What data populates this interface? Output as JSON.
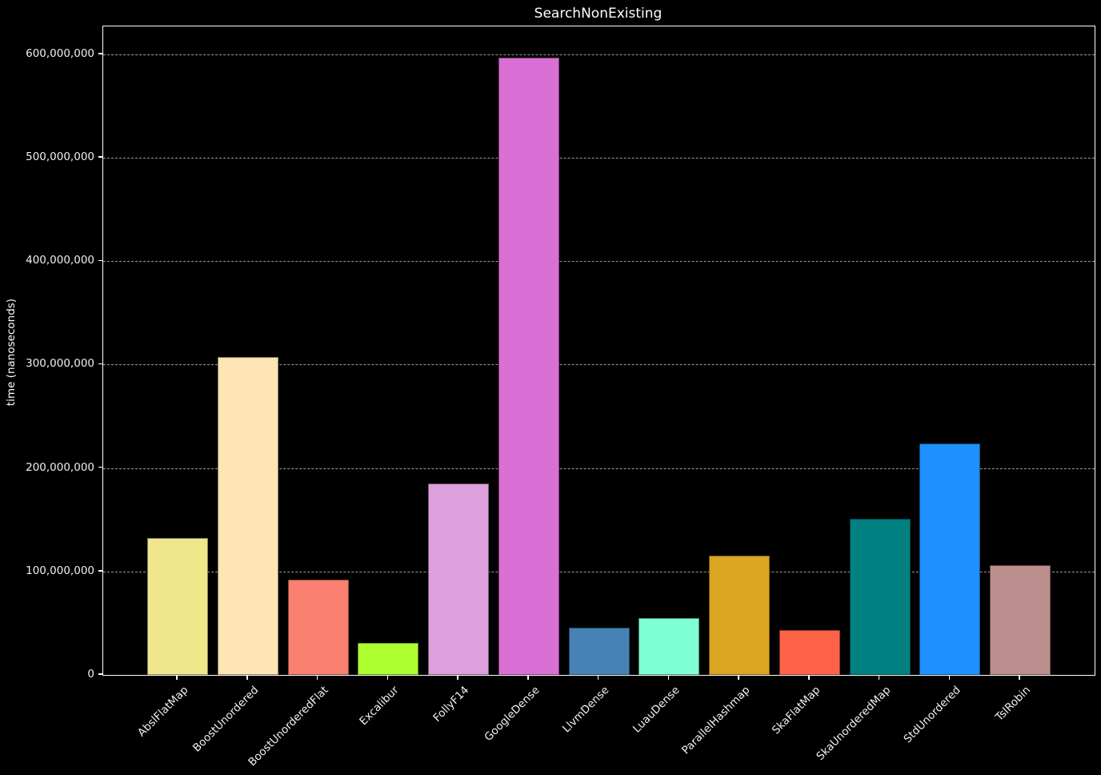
{
  "chart_data": {
    "type": "bar",
    "title": "SearchNonExisting",
    "xlabel": "",
    "ylabel": "time (nanoseconds)",
    "categories": [
      "AbslFlatMap",
      "BoostUnordered",
      "BoostUnorderedFlat",
      "Excalibur",
      "FollyF14",
      "GoogleDense",
      "LlvmDense",
      "LuauDense",
      "ParallelHashmap",
      "SkaFlatMap",
      "SkaUnorderedMap",
      "StdUnordered",
      "TslRobin"
    ],
    "values": [
      132000000,
      307000000,
      92000000,
      31000000,
      185000000,
      597000000,
      46000000,
      55000000,
      115000000,
      43000000,
      151000000,
      224000000,
      106000000
    ],
    "bar_colors": [
      "#f0e68c",
      "#ffe4b5",
      "#fa8072",
      "#adff2f",
      "#dda0dd",
      "#da70d6",
      "#4682b4",
      "#7fffd4",
      "#daa520",
      "#ff6347",
      "#008080",
      "#1e90ff",
      "#bc8f8f"
    ],
    "yticks": [
      0,
      100000000,
      200000000,
      300000000,
      400000000,
      500000000,
      600000000
    ],
    "ylim": [
      0,
      627000000
    ],
    "grid": "horizontal-dashed",
    "legend": "none"
  },
  "style": {
    "background_color": "#000000",
    "text_color": "#f0f0f0",
    "title_color": "#ffffff",
    "grid_color": "#9a9a9a",
    "frame_color": "#ffffff",
    "bar_edge_color": "rgba(0,0,0,0.45)"
  }
}
